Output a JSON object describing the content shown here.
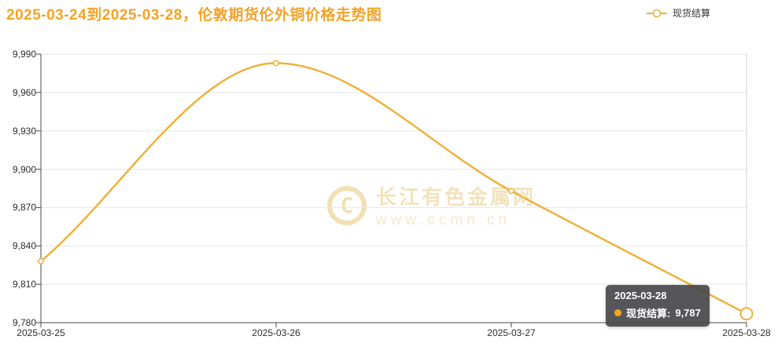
{
  "chart": {
    "title": "2025-03-24到2025-03-28，伦敦期货伦外铜价格走势图"
  },
  "legend": {
    "label": "现货结算"
  },
  "tooltip": {
    "date": "2025-03-28",
    "series_label": "现货结算:",
    "value": "9,787"
  },
  "watermark": {
    "logo_letter": "C",
    "site_name": "长江有色金属网",
    "site_url": "www.ccmn.cn"
  },
  "colors": {
    "title_orange": "#F2A32A",
    "line_gold": "#EEB23C",
    "accent_orange": "#F5A623",
    "grid_line": "#E2E5EA",
    "axis_line": "#45484C",
    "axis_pointer": "#CDD1D6",
    "tooltip_bg": "rgba(68,68,70,0.9)",
    "watermark_gold": "#F0E0B4"
  },
  "chart_data": {
    "type": "line",
    "smooth": true,
    "title": "2025-03-24到2025-03-28，伦敦期货伦外铜价格走势图",
    "categories": [
      "2025-03-25",
      "2025-03-26",
      "2025-03-27",
      "2025-03-28"
    ],
    "series": [
      {
        "name": "现货结算",
        "values": [
          9828,
          9983,
          9883,
          9787
        ]
      }
    ],
    "ylim": [
      9780,
      9990
    ],
    "ytick_step": 30,
    "ytick_labels": [
      "9,780",
      "9,810",
      "9,840",
      "9,870",
      "9,900",
      "9,930",
      "9,960",
      "9,990"
    ],
    "xlabel": "",
    "ylabel": "",
    "legend_position": "top-right",
    "grid": true,
    "hover_point": {
      "category": "2025-03-28",
      "value": 9787,
      "formatted": "9,787"
    }
  }
}
